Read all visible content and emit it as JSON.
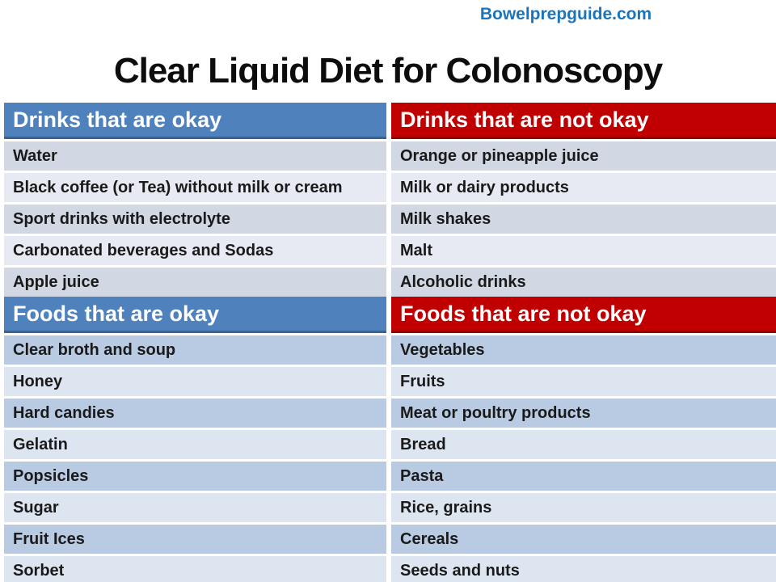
{
  "page": {
    "site_url": "Bowelprepguide.com",
    "title": "Clear Liquid Diet for Colonoscopy"
  },
  "table": {
    "sections": [
      {
        "okay_header": "Drinks that are okay",
        "not_okay_header": "Drinks that are not okay",
        "rows": [
          {
            "okay": "Water",
            "not_okay": "Orange or pineapple juice"
          },
          {
            "okay": "Black coffee (or Tea) without milk or cream",
            "not_okay": "Milk or dairy products"
          },
          {
            "okay": "Sport drinks with electrolyte",
            "not_okay": "Milk shakes"
          },
          {
            "okay": "Carbonated beverages and Sodas",
            "not_okay": "Malt"
          },
          {
            "okay": "Apple juice",
            "not_okay": "Alcoholic drinks"
          }
        ]
      },
      {
        "okay_header": "Foods that are okay",
        "not_okay_header": "Foods that are not okay",
        "rows": [
          {
            "okay": "Clear broth and soup",
            "not_okay": "Vegetables"
          },
          {
            "okay": "Honey",
            "not_okay": "Fruits"
          },
          {
            "okay": "Hard candies",
            "not_okay": "Meat or poultry products"
          },
          {
            "okay": "Gelatin",
            "not_okay": "Bread"
          },
          {
            "okay": "Popsicles",
            "not_okay": "Pasta"
          },
          {
            "okay": "Sugar",
            "not_okay": "Rice, grains"
          },
          {
            "okay": "Fruit Ices",
            "not_okay": "Cereals"
          },
          {
            "okay": "Sorbet",
            "not_okay": "Seeds and nuts"
          }
        ]
      }
    ]
  },
  "colors": {
    "link_blue": "#1b75bc",
    "title_black": "#0d0d0d",
    "header_okay_blue": "#4f81bd",
    "header_not_okay_red": "#c00000",
    "drinks_row_dark": "#d2d7e4",
    "drinks_row_light": "#e7eaf3",
    "foods_row_dark": "#b9cbe2",
    "foods_row_light": "#dde5f1"
  }
}
